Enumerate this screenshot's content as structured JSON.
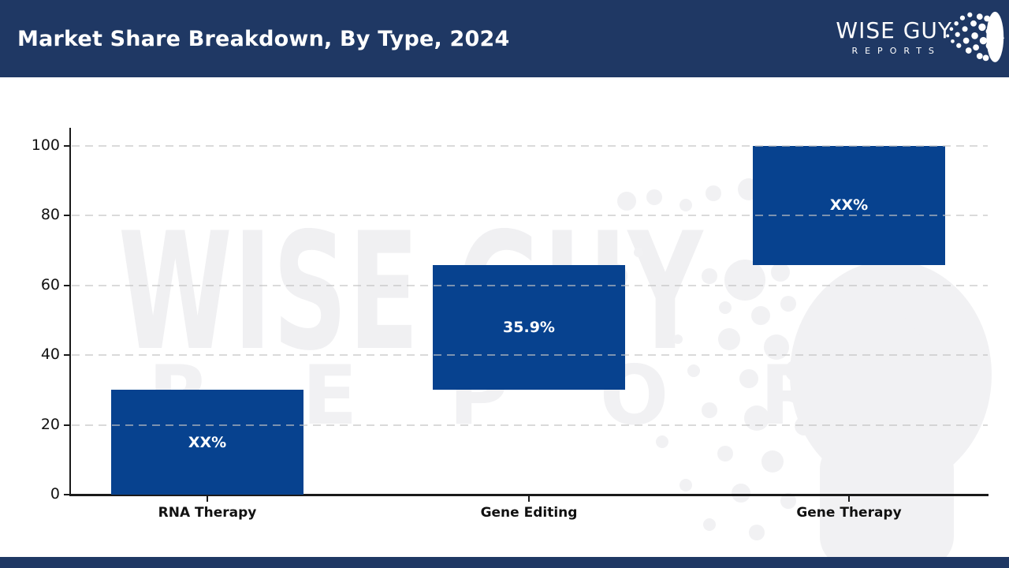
{
  "header": {
    "title": "Market Share Breakdown, By Type, 2024",
    "background_color": "#1F3864",
    "text_color": "#FFFFFF",
    "logo": {
      "name_line": "WISE GUY",
      "sub_line": "REPORTS"
    }
  },
  "watermark": {
    "line1": "WISE GUY",
    "line2": "R E P O R T S"
  },
  "chart_data": {
    "type": "bar",
    "subtype": "floating-waterfall",
    "title": "Market Share Breakdown, By Type, 2024",
    "categories": [
      "RNA Therapy",
      "Gene Editing",
      "Gene Therapy"
    ],
    "segments": [
      {
        "category": "RNA Therapy",
        "start": 0,
        "end": 30,
        "label": "XX%"
      },
      {
        "category": "Gene Editing",
        "start": 30,
        "end": 65.9,
        "label": "35.9%"
      },
      {
        "category": "Gene Therapy",
        "start": 65.9,
        "end": 100,
        "label": "XX%"
      }
    ],
    "bar_color": "#07428F",
    "bar_label_color": "#FFFFFF",
    "yticks": [
      0,
      20,
      40,
      60,
      80,
      100
    ],
    "ylim": [
      0,
      105
    ],
    "xlabel": "",
    "ylabel": "",
    "grid": {
      "horizontal": true,
      "style": "dashed"
    },
    "legend": "none"
  },
  "footer": {
    "background_color": "#1F3864"
  }
}
